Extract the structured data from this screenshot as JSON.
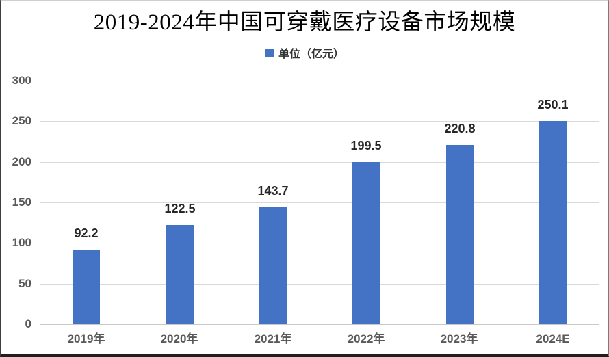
{
  "title": "2019-2024年中国可穿戴医疗设备市场规模",
  "legend": {
    "label": "单位（亿元）",
    "marker_color": "#4472C4"
  },
  "chart_data": {
    "type": "bar",
    "title": "2019-2024年中国可穿戴医疗设备市场规模",
    "categories": [
      "2019年",
      "2020年",
      "2021年",
      "2022年",
      "2023年",
      "2024E"
    ],
    "values": [
      92.2,
      122.5,
      143.7,
      199.5,
      220.8,
      250.1
    ],
    "value_labels": [
      "92.2",
      "122.5",
      "143.7",
      "199.5",
      "220.8",
      "250.1"
    ],
    "series_name": "单位（亿元）",
    "xlabel": "",
    "ylabel": "",
    "ylim": [
      0,
      300
    ],
    "yticks": [
      0,
      50,
      100,
      150,
      200,
      250,
      300
    ],
    "grid": true,
    "legend_position": "top-center"
  },
  "colors": {
    "bar": "#4472C4",
    "gridline": "#d9d9d9",
    "baseline": "#c9c9c9",
    "axis_label": "#595959",
    "data_label": "#262626",
    "title": "#000000",
    "background": "#ffffff"
  }
}
